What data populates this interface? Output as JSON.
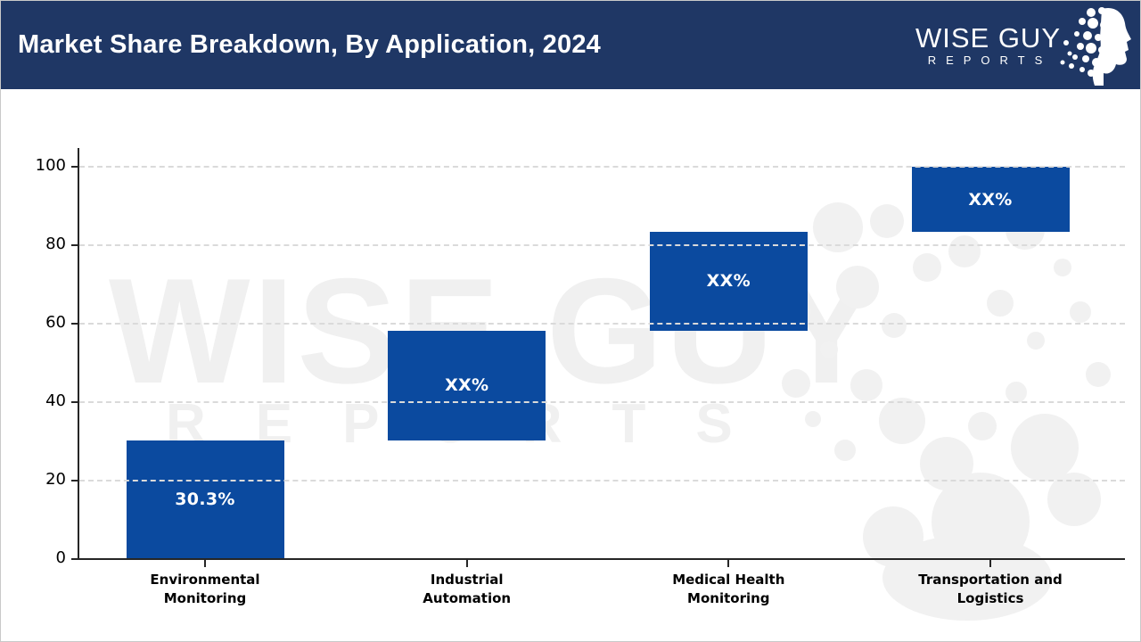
{
  "header": {
    "title": "Market Share Breakdown, By Application, 2024",
    "bg_color": "#1f3765",
    "logo": {
      "primary": "WISE GUY",
      "secondary": "REPORTS"
    }
  },
  "watermark": {
    "line1": "WISE GUY",
    "line2": "REPORTS"
  },
  "chart_data": {
    "type": "bar",
    "subtype": "waterfall",
    "title": "Market Share Breakdown, By Application, 2024",
    "categories": [
      "Environmental\nMonitoring",
      "Industrial\nAutomation",
      "Medical Health\nMonitoring",
      "Transportation and\nLogistics"
    ],
    "segments": [
      {
        "category": "Environmental\nMonitoring",
        "label": "30.3%",
        "start": 0,
        "end": 30.3
      },
      {
        "category": "Industrial\nAutomation",
        "label": "XX%",
        "start": 30.3,
        "end": 58.2
      },
      {
        "category": "Medical Health\nMonitoring",
        "label": "XX%",
        "start": 58.2,
        "end": 83.4
      },
      {
        "category": "Transportation and\nLogistics",
        "label": "XX%",
        "start": 83.4,
        "end": 100
      }
    ],
    "y_ticks": [
      0,
      20,
      40,
      60,
      80,
      100
    ],
    "ylim": [
      0,
      105
    ],
    "xlabel": "",
    "ylabel": "",
    "grid": "dashed-horizontal",
    "legend": "none",
    "bar_color": "#0b4a9f",
    "bar_label_color": "#ffffff",
    "axis_color": "#262626",
    "grid_color": "#dadada"
  }
}
